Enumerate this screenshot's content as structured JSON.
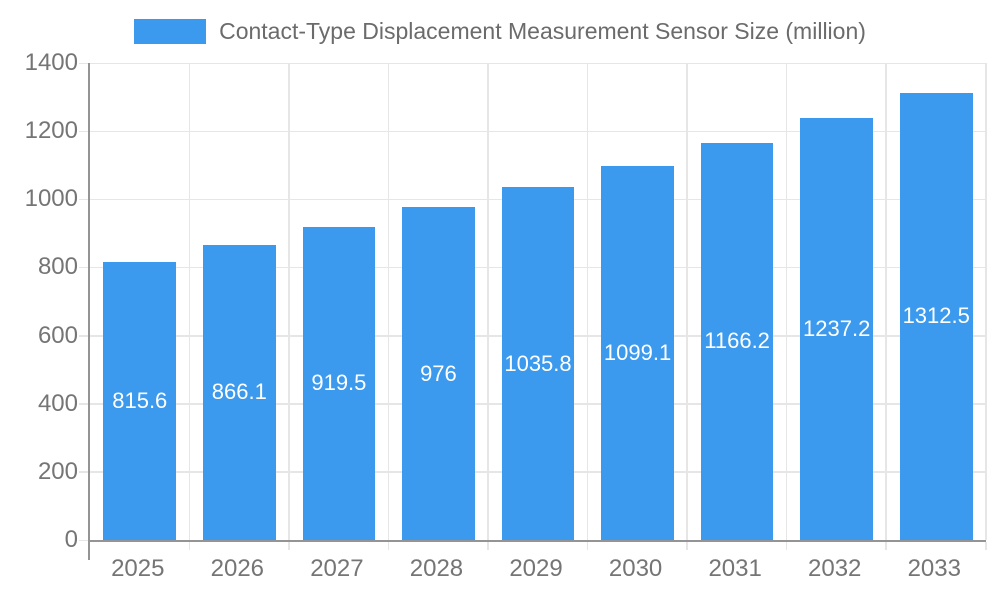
{
  "chart_data": {
    "type": "bar",
    "title": "Contact-Type Displacement Measurement Sensor Size (million)",
    "categories": [
      "2025",
      "2026",
      "2027",
      "2028",
      "2029",
      "2030",
      "2031",
      "2032",
      "2033"
    ],
    "values": [
      815.6,
      866.1,
      919.5,
      976,
      1035.8,
      1099.1,
      1166.2,
      1237.2,
      1312.5
    ],
    "bar_labels": [
      "815.6",
      "866.1",
      "919.5",
      "976",
      "1035.8",
      "1099.1",
      "1166.2",
      "1237.2",
      "1312.5"
    ],
    "xlabel": "",
    "ylabel": "",
    "ylim": [
      0,
      1400
    ],
    "yticks": [
      0,
      200,
      400,
      600,
      800,
      1000,
      1200,
      1400
    ],
    "ytick_labels": [
      "0",
      "200",
      "400",
      "600",
      "800",
      "1000",
      "1200",
      "1400"
    ],
    "grid": true,
    "legend_position": "top",
    "colors": {
      "bar": "#3B99EE",
      "grid": "#E6E6E6",
      "axis": "#949494",
      "tick_text": "#757575",
      "legend_text": "#6B6B6B",
      "bar_label": "#FFFFFF",
      "background": "#FFFFFF"
    }
  }
}
